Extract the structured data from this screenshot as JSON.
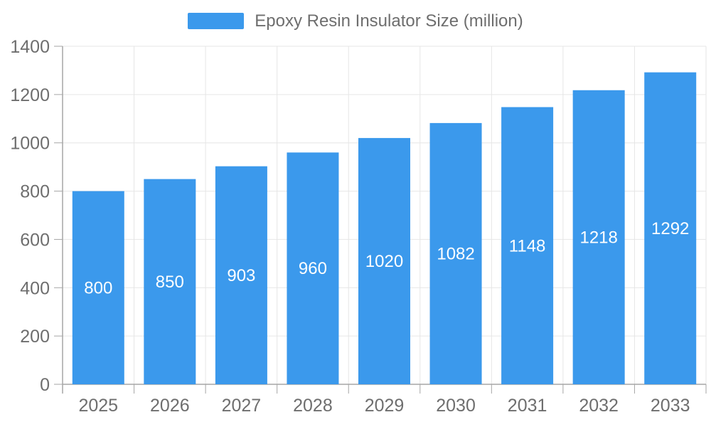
{
  "chart_data": {
    "type": "bar",
    "title": "Epoxy Resin Insulator Size (million)",
    "categories": [
      "2025",
      "2026",
      "2027",
      "2028",
      "2029",
      "2030",
      "2031",
      "2032",
      "2033"
    ],
    "values": [
      800,
      850,
      903,
      960,
      1020,
      1082,
      1148,
      1218,
      1292
    ],
    "series": [
      {
        "name": "Epoxy Resin Insulator Size (million)",
        "values": [
          800,
          850,
          903,
          960,
          1020,
          1082,
          1148,
          1218,
          1292
        ]
      }
    ],
    "xlabel": "",
    "ylabel": "",
    "ylim": [
      0,
      1400
    ],
    "yticks": [
      0,
      200,
      400,
      600,
      800,
      1000,
      1200,
      1400
    ],
    "grid": true,
    "legend_position": "top-center",
    "bar_value_labels_visible": true,
    "colors": {
      "bar": "#3B99EC",
      "grid_line": "#E6E6E6",
      "axis_line": "#A6A6A6",
      "tick_text": "#6E6E6E",
      "bar_value_label": "#FFFFFF",
      "background": "#FFFFFF"
    }
  }
}
